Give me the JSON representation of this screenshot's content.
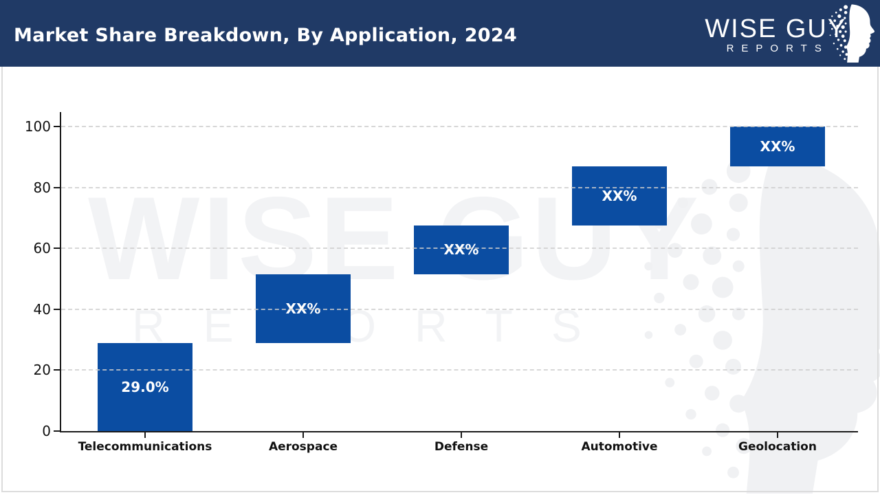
{
  "header": {
    "title": "Market Share Breakdown, By Application, 2024",
    "logo": {
      "line1": "WISE GUY",
      "line2": "REPORTS"
    }
  },
  "watermark": {
    "line1": "WISE GUY",
    "line2": "REPORTS"
  },
  "colors": {
    "header_bg": "#203a66",
    "bar": "#0b4da2",
    "bar_label": "#ffffff",
    "grid": "#cdcdcd",
    "axis": "#1a1a1a",
    "tick_text": "#111111",
    "watermark": "#f2f3f5",
    "frame_border": "#dcdcdc",
    "title_text": "#ffffff"
  },
  "chart_data": {
    "type": "bar",
    "subtype": "waterfall",
    "title": "Market Share Breakdown, By Application, 2024",
    "categories": [
      "Telecommunications",
      "Aerospace",
      "Defense",
      "Automotive",
      "Geolocation"
    ],
    "segments": [
      {
        "category": "Telecommunications",
        "start": 0,
        "end": 29,
        "value": 29,
        "label": "29.0%"
      },
      {
        "category": "Aerospace",
        "start": 29,
        "end": 51.5,
        "value": 22.5,
        "label": "XX%"
      },
      {
        "category": "Defense",
        "start": 51.5,
        "end": 67.5,
        "value": 16,
        "label": "XX%"
      },
      {
        "category": "Automotive",
        "start": 67.5,
        "end": 87,
        "value": 19.5,
        "label": "XX%"
      },
      {
        "category": "Geolocation",
        "start": 87,
        "end": 100,
        "value": 13,
        "label": "XX%"
      }
    ],
    "yticks": [
      0,
      20,
      40,
      60,
      80,
      100
    ],
    "ylim": [
      0,
      105
    ],
    "xlabel": "",
    "ylabel": "",
    "grid": "horizontal-dashed",
    "legend": "none",
    "bar_color": "#0b4da2",
    "bar_label_color": "#ffffff"
  }
}
